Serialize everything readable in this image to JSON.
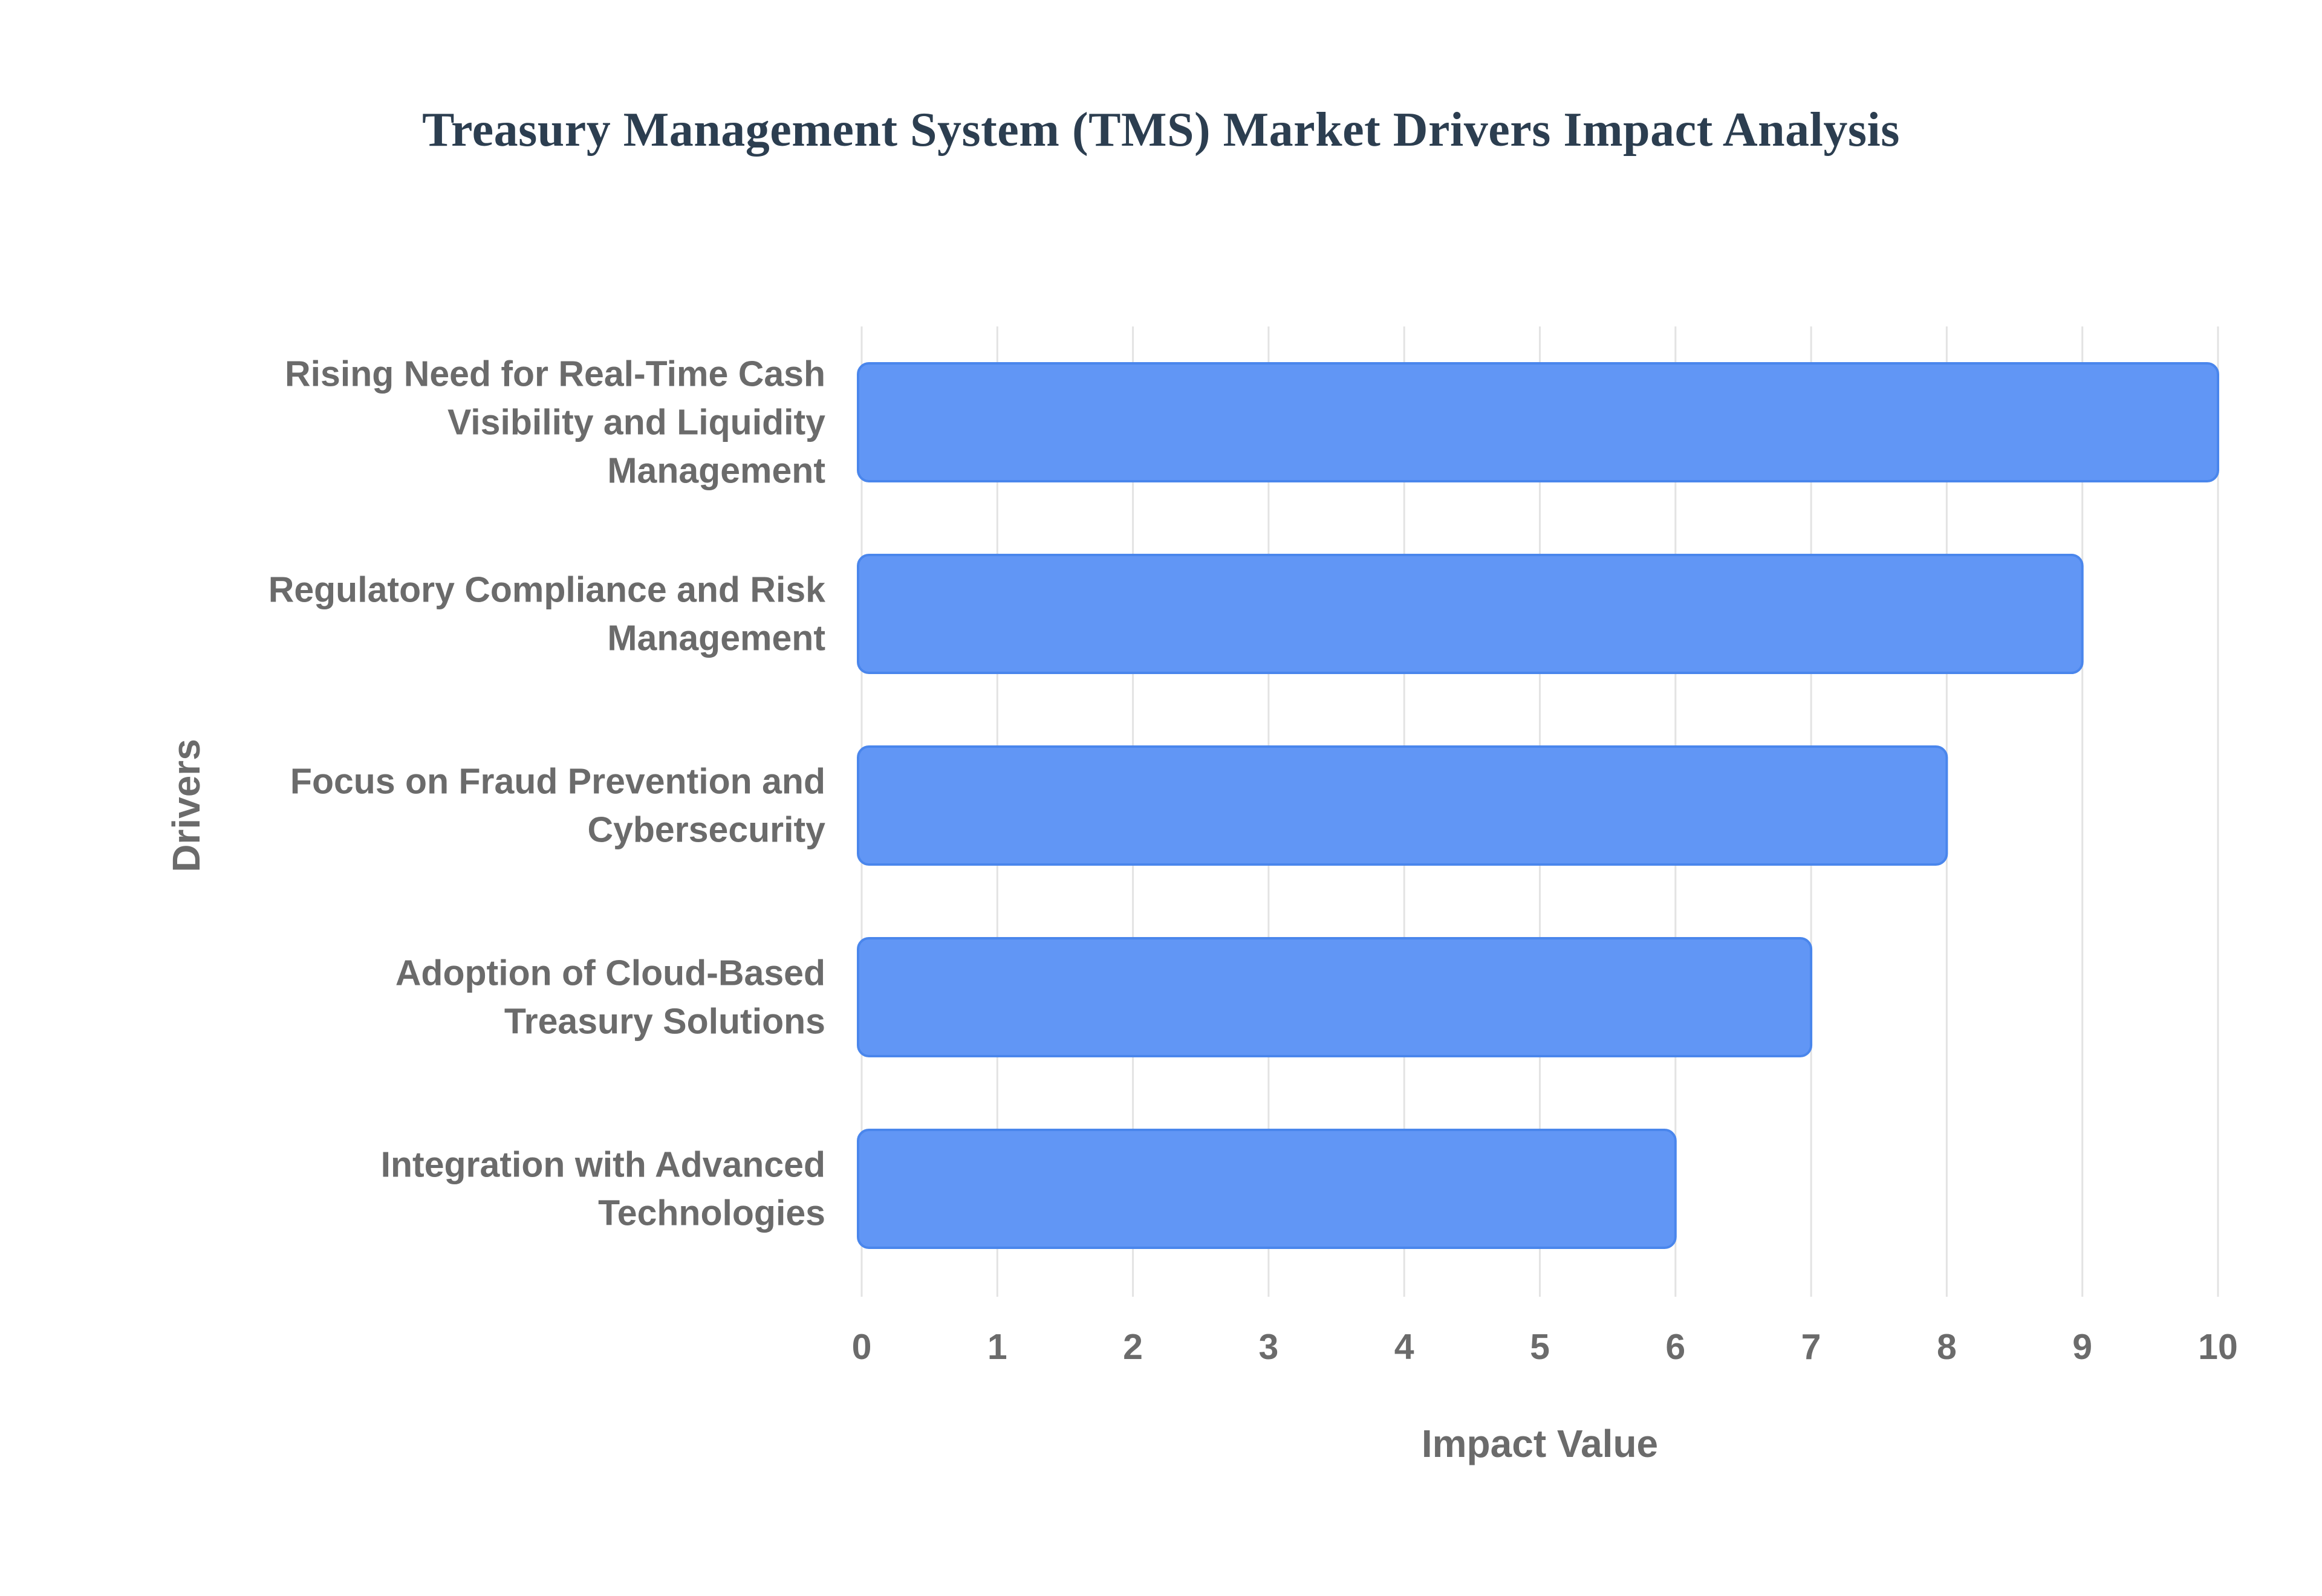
{
  "chart_data": {
    "type": "bar",
    "orientation": "horizontal",
    "title": "Treasury Management System (TMS) Market Drivers Impact Analysis",
    "xlabel": "Impact Value",
    "ylabel": "Drivers",
    "xlim": [
      0,
      10
    ],
    "xticks": [
      "0",
      "1",
      "2",
      "3",
      "4",
      "5",
      "6",
      "7",
      "8",
      "9",
      "10"
    ],
    "grid": true,
    "bar_color": "#6196f5",
    "bar_border_color": "#4a86ec",
    "categories": [
      [
        "Rising Need for Real-Time Cash",
        "Visibility and Liquidity",
        "Management"
      ],
      [
        "Regulatory Compliance and Risk",
        "Management"
      ],
      [
        "Focus on Fraud Prevention and",
        "Cybersecurity"
      ],
      [
        "Adoption of Cloud-Based",
        "Treasury Solutions"
      ],
      [
        "Integration with Advanced",
        "Technologies"
      ]
    ],
    "values": [
      10,
      9,
      8,
      7,
      6
    ]
  }
}
